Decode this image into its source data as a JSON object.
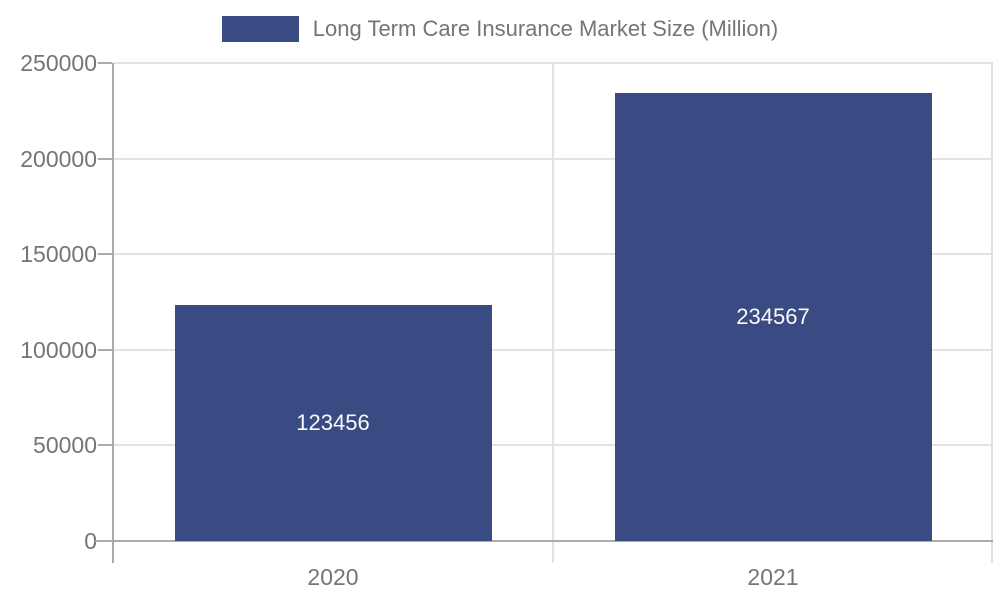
{
  "chart_data": {
    "type": "bar",
    "title": "Long Term Care Insurance Market Size (Million)",
    "legend": {
      "position": "top",
      "entries": [
        "Long Term Care Insurance Market Size (Million)"
      ]
    },
    "categories": [
      "2020",
      "2021"
    ],
    "series": [
      {
        "name": "Long Term Care Insurance Market Size (Million)",
        "values": [
          123456,
          234567
        ]
      }
    ],
    "bar_labels": [
      "123456",
      "234567"
    ],
    "xlabel": "",
    "ylabel": "",
    "ylim": [
      0,
      250000
    ],
    "yticks": [
      0,
      50000,
      100000,
      150000,
      200000,
      250000
    ],
    "ytick_labels": [
      "0",
      "50000",
      "100000",
      "150000",
      "200000",
      "250000"
    ],
    "grid": true,
    "colors": {
      "bar": "#3A4A82",
      "grid_line": "#E3E3E3",
      "axis_line": "#ABABAB",
      "boundary_line": "#E0E0E0",
      "text": "#757575",
      "bar_label_text": "#FAFAFA",
      "background": "#FFFFFF"
    }
  }
}
